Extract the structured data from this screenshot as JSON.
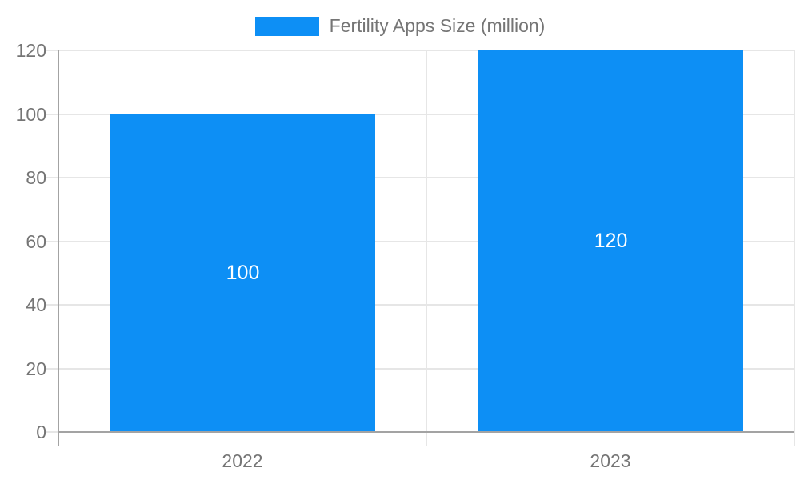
{
  "chart_data": {
    "type": "bar",
    "title": "",
    "legend": {
      "label": "Fertility Apps Size (million)",
      "position": "top-center"
    },
    "categories": [
      "2022",
      "2023"
    ],
    "series": [
      {
        "name": "Fertility Apps Size (million)",
        "values": [
          100,
          120
        ]
      }
    ],
    "value_labels": [
      "100",
      "120"
    ],
    "xlabel": "",
    "ylabel": "",
    "ylim": [
      0,
      120
    ],
    "yticks": [
      0,
      20,
      40,
      60,
      80,
      100,
      120
    ],
    "grid": true,
    "colors": {
      "bar": "#0d8ff5",
      "value_label": "#ffffff",
      "axis_line": "#a3a3a3",
      "gridline": "#e6e6e6",
      "tick_text": "#757575"
    }
  }
}
